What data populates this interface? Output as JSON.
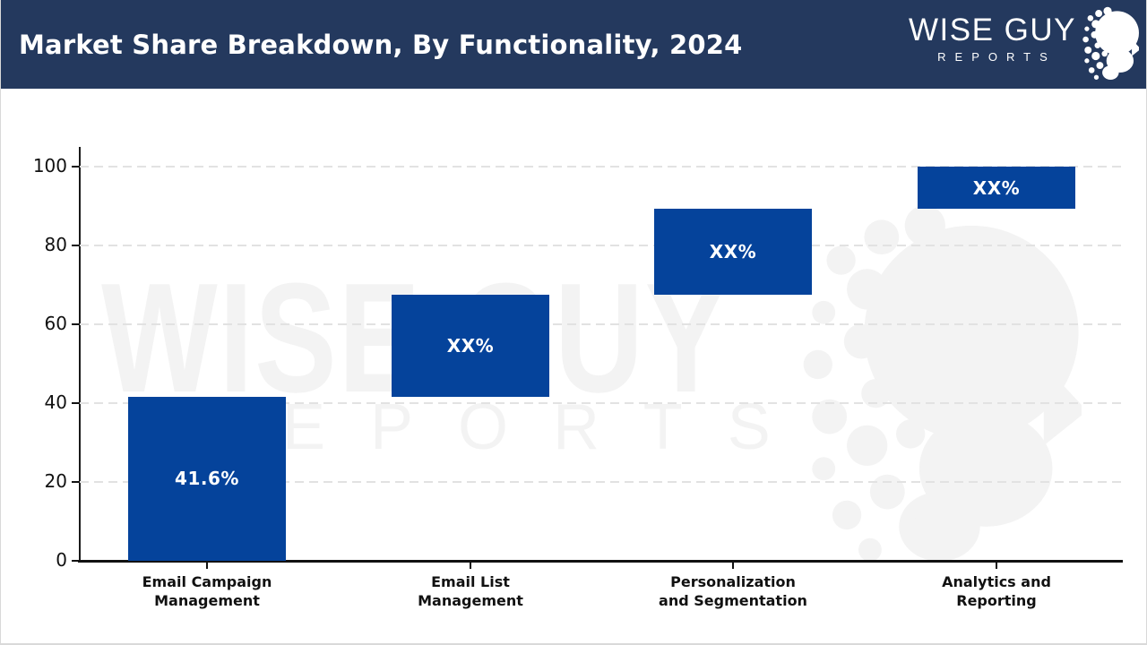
{
  "header": {
    "title": "Market Share Breakdown, By Functionality, 2024",
    "bg_color": "#24395e",
    "logo": {
      "name": "WISE GUY",
      "sub": "REPORTS"
    }
  },
  "watermark": {
    "name": "WISE GUY",
    "sub": "REPORTS",
    "color": "#f3f3f3"
  },
  "chart_data": {
    "type": "bar",
    "subtype": "floating-waterfall",
    "title": "Market Share Breakdown, By Functionality, 2024",
    "categories": [
      "Email Campaign\nManagement",
      "Email List\nManagement",
      "Personalization\nand Segmentation",
      "Analytics and\nReporting"
    ],
    "segments": [
      {
        "category": "Email Campaign Management",
        "start": 0,
        "end": 41.6,
        "label": "41.6%"
      },
      {
        "category": "Email List Management",
        "start": 41.6,
        "end": 67.4,
        "label": "XX%"
      },
      {
        "category": "Personalization and Segmentation",
        "start": 67.4,
        "end": 89.3,
        "label": "XX%"
      },
      {
        "category": "Analytics and Reporting",
        "start": 89.3,
        "end": 99.9,
        "label": "XX%"
      }
    ],
    "yticks": [
      0,
      20,
      40,
      60,
      80,
      100
    ],
    "ylim": [
      0,
      105
    ],
    "xlabel": "",
    "ylabel": "",
    "grid": "horizontal-dashed",
    "legend": "none",
    "bar_color": "#05439b",
    "bar_label_color": "#ffffff",
    "axis_color": "#111111",
    "grid_color": "#e2e2e2"
  }
}
